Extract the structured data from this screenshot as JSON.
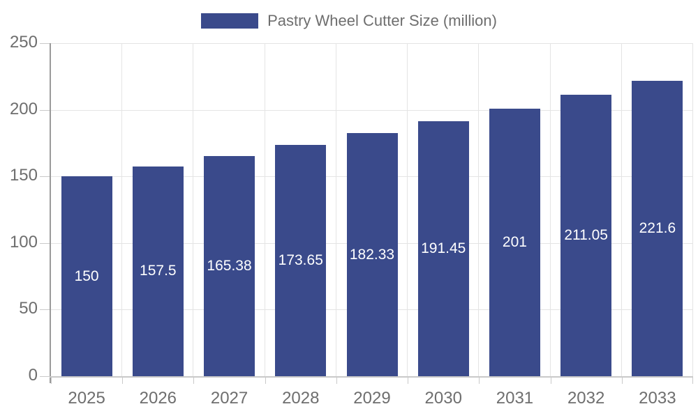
{
  "chart_data": {
    "type": "bar",
    "title": "Pastry Wheel Cutter Size (million)",
    "legend": [
      "Pastry Wheel Cutter Size (million)"
    ],
    "legend_position": "top-center",
    "categories": [
      "2025",
      "2026",
      "2027",
      "2028",
      "2029",
      "2030",
      "2031",
      "2032",
      "2033"
    ],
    "values": [
      150,
      157.5,
      165.38,
      173.65,
      182.33,
      191.45,
      201,
      211.05,
      221.6
    ],
    "value_labels": [
      "150",
      "157.5",
      "165.38",
      "173.65",
      "182.33",
      "191.45",
      "201",
      "211.05",
      "221.6"
    ],
    "xlabel": "",
    "ylabel": "",
    "ylim": [
      0,
      250
    ],
    "yticks": [
      0,
      50,
      100,
      150,
      200,
      250
    ],
    "ytick_labels": [
      "0",
      "50",
      "100",
      "150",
      "200",
      "250"
    ],
    "grid": true,
    "colors": {
      "bar": "#3A4A8B",
      "value_label": "#FFFFFF",
      "axis_text": "#6E6E6E",
      "gridline": "#E4E4E4",
      "y_axis_line": "#9A9A9A",
      "x_axis_line": "#C9C9C9",
      "background": "#FFFFFF"
    }
  }
}
